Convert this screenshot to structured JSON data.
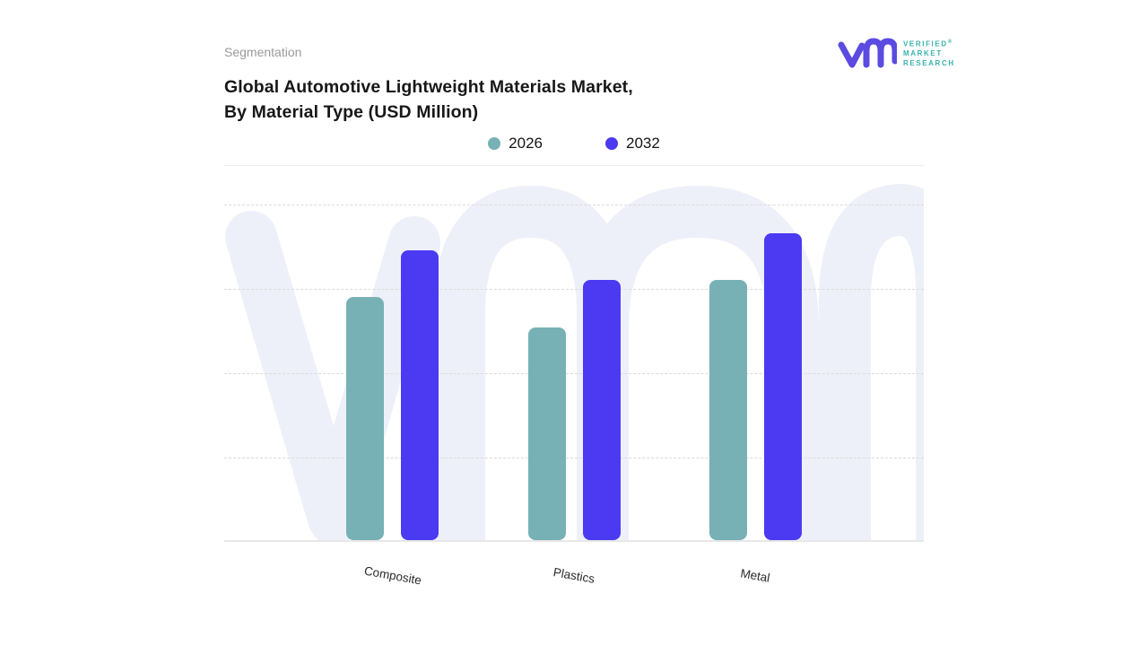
{
  "header": {
    "eyebrow": "Segmentation",
    "title_line1": "Global Automotive Lightweight Materials Market,",
    "title_line2": "By Material Type (USD Million)"
  },
  "logo": {
    "name": "Verified Market Research",
    "line1": "VERIFIED",
    "registered": "®",
    "line2": "MARKET",
    "line3": "RESEARCH",
    "glyph_color": "#5b4be0",
    "text_color": "#38b2ab"
  },
  "legend": [
    {
      "label": "2026",
      "color": "#77b1b5"
    },
    {
      "label": "2032",
      "color": "#4b3af2"
    }
  ],
  "watermark": {
    "glyph": "vmr",
    "color": "#eef0f9"
  },
  "chart_data": {
    "type": "bar",
    "title": "Global Automotive Lightweight Materials Market, By Material Type (USD Million)",
    "units": "USD Million",
    "categories": [
      "Composite",
      "Plastics",
      "Metal"
    ],
    "series": [
      {
        "name": "2026",
        "color": "#77b1b5",
        "values": [
          72,
          63,
          77
        ]
      },
      {
        "name": "2032",
        "color": "#4b3af2",
        "values": [
          86,
          77,
          91
        ]
      }
    ],
    "xlabel": "",
    "ylabel": "",
    "ylim": [
      0,
      100
    ],
    "y_axis_tick_labels_visible": false,
    "value_scale_note": "percent of plot height; no numeric axis shown",
    "grid": "horizontal-dashed",
    "legend_position": "top-center"
  }
}
